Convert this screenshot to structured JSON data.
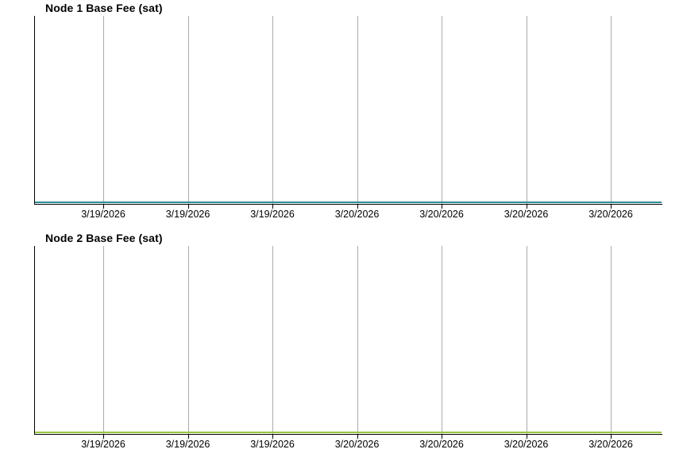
{
  "page": {
    "background": "#ffffff",
    "grid_color": "#ABABAB",
    "axis_color": "#000000",
    "text_color": "#000000"
  },
  "chart_data": [
    {
      "type": "line",
      "title": "Node 1 Base Fee (sat)",
      "x": [
        "3/19/2026",
        "3/19/2026",
        "3/19/2026",
        "3/20/2026",
        "3/20/2026",
        "3/20/2026",
        "3/20/2026"
      ],
      "series": [
        {
          "name": "Node 1 Base Fee (sat)",
          "values": [
            0,
            0,
            0,
            0,
            0,
            0,
            0
          ],
          "color": "#2D8C96"
        }
      ],
      "xlabel": "",
      "ylabel": "",
      "ylim": [
        0,
        1
      ],
      "grid": "vertical-only",
      "legend": "none",
      "note": "flat line at zero along the x-axis"
    },
    {
      "type": "line",
      "title": "Node 2 Base Fee (sat)",
      "x": [
        "3/19/2026",
        "3/19/2026",
        "3/19/2026",
        "3/20/2026",
        "3/20/2026",
        "3/20/2026",
        "3/20/2026"
      ],
      "series": [
        {
          "name": "Node 2 Base Fee (sat)",
          "values": [
            0,
            0,
            0,
            0,
            0,
            0,
            0
          ],
          "color": "#97C83D"
        }
      ],
      "xlabel": "",
      "ylabel": "",
      "ylim": [
        0,
        1
      ],
      "grid": "vertical-only",
      "legend": "none",
      "note": "flat line at zero along the x-axis"
    }
  ]
}
